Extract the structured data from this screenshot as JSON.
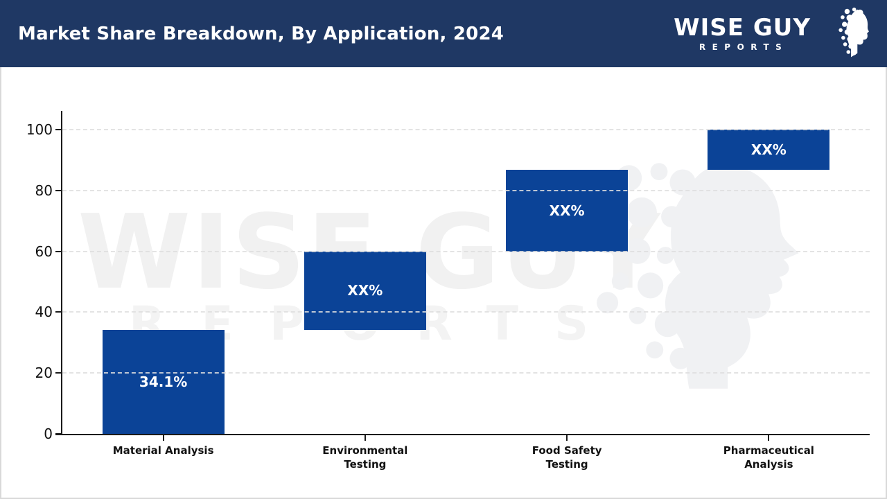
{
  "header": {
    "title": "Market Share Breakdown, By Application, 2024",
    "bg_color": "#1f3864",
    "logo": {
      "line1": "WISE GUY",
      "line2": "REPORTS"
    }
  },
  "watermark": {
    "line1": "WISE GUY",
    "line2": "REPORTS"
  },
  "chart_data": {
    "type": "bar",
    "subtype": "waterfall",
    "title": "Market Share Breakdown, By Application, 2024",
    "xlabel": "",
    "ylabel": "",
    "ylim": [
      0,
      100
    ],
    "yticks": [
      0,
      20,
      40,
      60,
      80,
      100
    ],
    "grid": "horizontal-dashed",
    "legend": "none",
    "bar_color": "#0b4397",
    "categories": [
      "Material Analysis",
      "Environmental Testing",
      "Food Safety Testing",
      "Pharmaceutical Analysis"
    ],
    "bars": [
      {
        "label_lines": [
          "Material Analysis"
        ],
        "start": 0,
        "end": 34.1,
        "value_label": "34.1%"
      },
      {
        "label_lines": [
          "Environmental",
          "Testing"
        ],
        "start": 34.1,
        "end": 60.0,
        "value_label": "XX%"
      },
      {
        "label_lines": [
          "Food Safety",
          "Testing"
        ],
        "start": 60.0,
        "end": 86.7,
        "value_label": "XX%"
      },
      {
        "label_lines": [
          "Pharmaceutical",
          "Analysis"
        ],
        "start": 86.7,
        "end": 100.0,
        "value_label": "XX%"
      }
    ]
  }
}
